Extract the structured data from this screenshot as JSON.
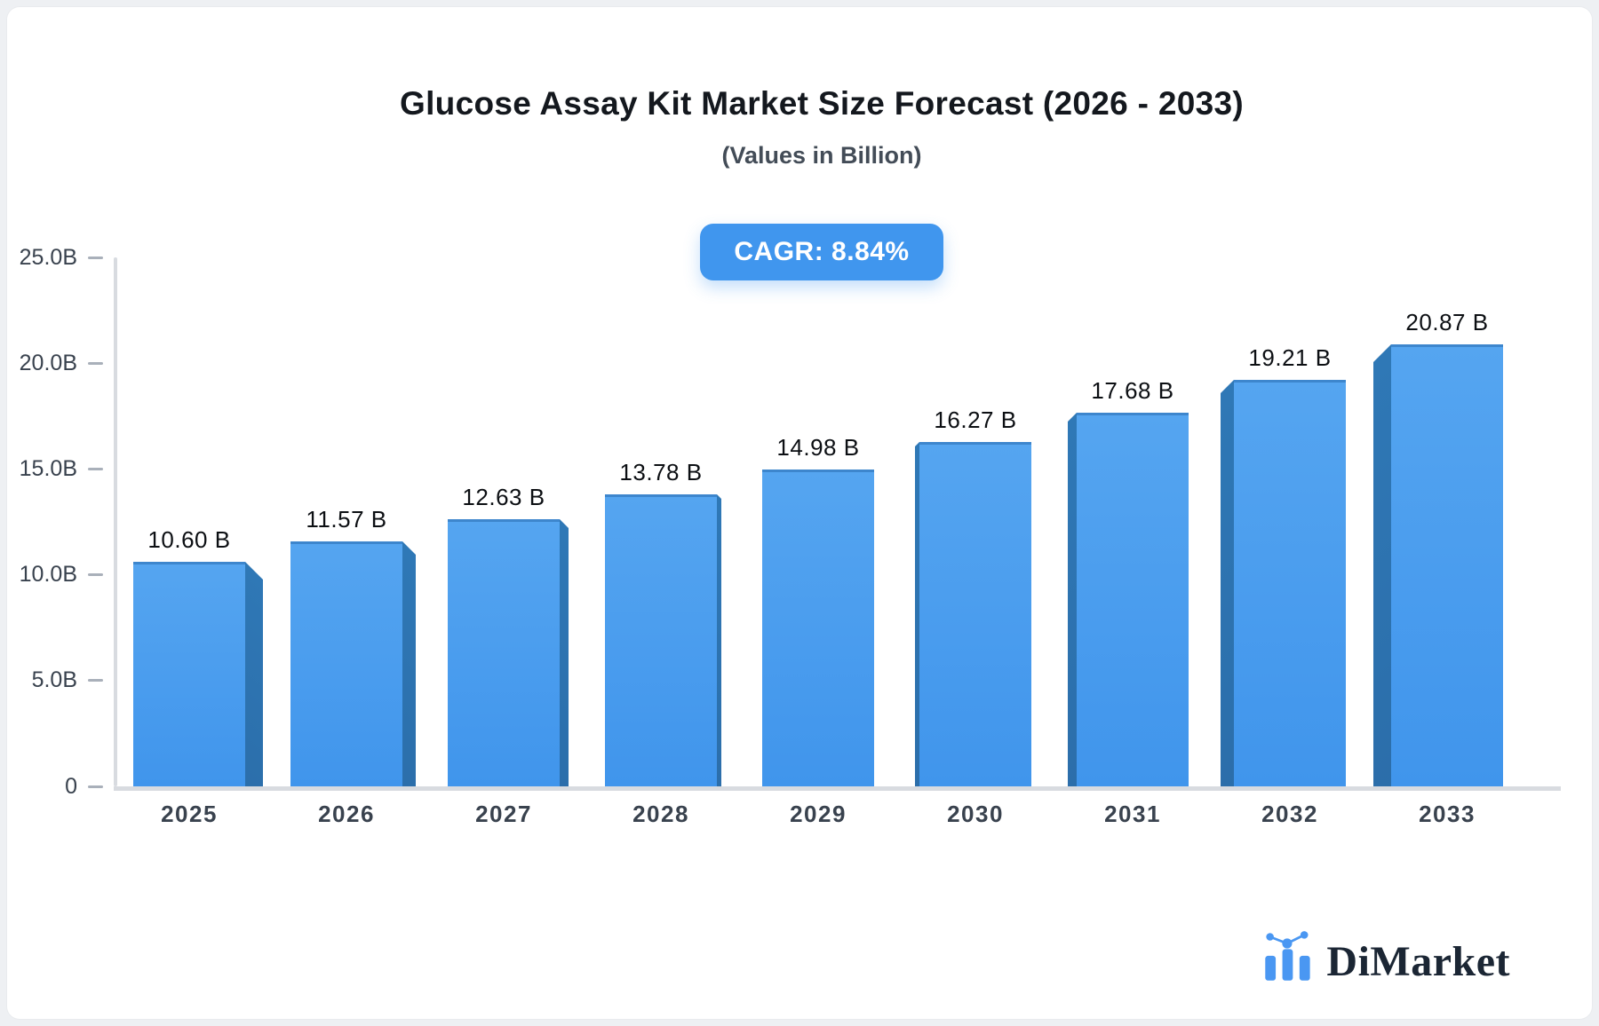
{
  "header": {
    "title": "Glucose Assay Kit Market Size Forecast (2026 - 2033)",
    "subtitle": "(Values in Billion)"
  },
  "badge": {
    "label": "CAGR: 8.84%"
  },
  "logo": {
    "text": "DiMarket",
    "icon": "bar-line-chart-icon"
  },
  "colors": {
    "accent": "#4096ee",
    "bar_face_top": "#55a5f0",
    "bar_face_bottom": "#4095ec",
    "bar_top_edge": "#3d86cd",
    "bar_side": "#2e74b0",
    "axis_line": "#d8dbe0",
    "tick_dash": "#a9b0ba",
    "axis_text": "#39424e",
    "value_text": "#0c0f13",
    "logo_blue": "#4a97f2",
    "logo_navy": "#1b2634"
  },
  "chart_data": {
    "type": "bar",
    "title": "Glucose Assay Kit Market Size Forecast (2026 - 2033)",
    "subtitle": "(Values in Billion)",
    "annotation": "CAGR: 8.84%",
    "categories": [
      "2025",
      "2026",
      "2027",
      "2028",
      "2029",
      "2030",
      "2031",
      "2032",
      "2033"
    ],
    "values": [
      10.6,
      11.57,
      12.63,
      13.78,
      14.98,
      16.27,
      17.68,
      19.21,
      20.87
    ],
    "value_labels": [
      "10.60 B",
      "11.57 B",
      "12.63 B",
      "13.78 B",
      "14.98 B",
      "16.27 B",
      "17.68 B",
      "19.21 B",
      "20.87 B"
    ],
    "unit": "Billion",
    "ylim": [
      0,
      25
    ],
    "y_ticks": [
      {
        "value": 0,
        "label": "0"
      },
      {
        "value": 5,
        "label": "5.0B"
      },
      {
        "value": 10,
        "label": "10.0B"
      },
      {
        "value": 15,
        "label": "15.0B"
      },
      {
        "value": 20,
        "label": "20.0B"
      },
      {
        "value": 25,
        "label": "25.0B"
      }
    ],
    "grid": false,
    "legend": false,
    "bar_style": "3d-perspective-center"
  }
}
